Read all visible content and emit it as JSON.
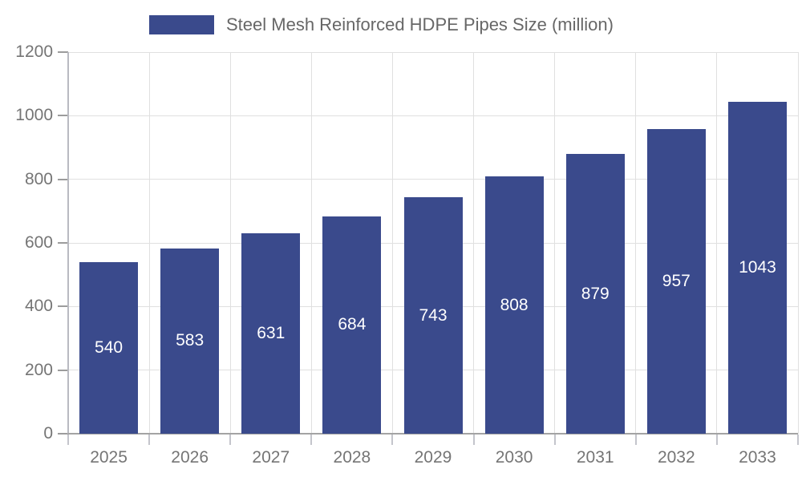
{
  "legend": {
    "label": "Steel Mesh Reinforced HDPE Pipes Size (million)"
  },
  "colors": {
    "bar": "#3a4a8c",
    "value_label": "#ffffff",
    "axis_text": "#757575",
    "gridline": "#e0e0e0"
  },
  "chart_data": {
    "type": "bar",
    "title": "Steel Mesh Reinforced HDPE Pipes Size (million)",
    "categories": [
      "2025",
      "2026",
      "2027",
      "2028",
      "2029",
      "2030",
      "2031",
      "2032",
      "2033"
    ],
    "values": [
      540,
      583,
      631,
      684,
      743,
      808,
      879,
      957,
      1043
    ],
    "series_name": "Steel Mesh Reinforced HDPE Pipes Size (million)",
    "xlabel": "",
    "ylabel": "",
    "ylim": [
      0,
      1200
    ],
    "yticks": [
      0,
      200,
      400,
      600,
      800,
      1000,
      1200
    ],
    "grid": true,
    "legend_position": "top-center",
    "value_labels": "inside-center"
  }
}
